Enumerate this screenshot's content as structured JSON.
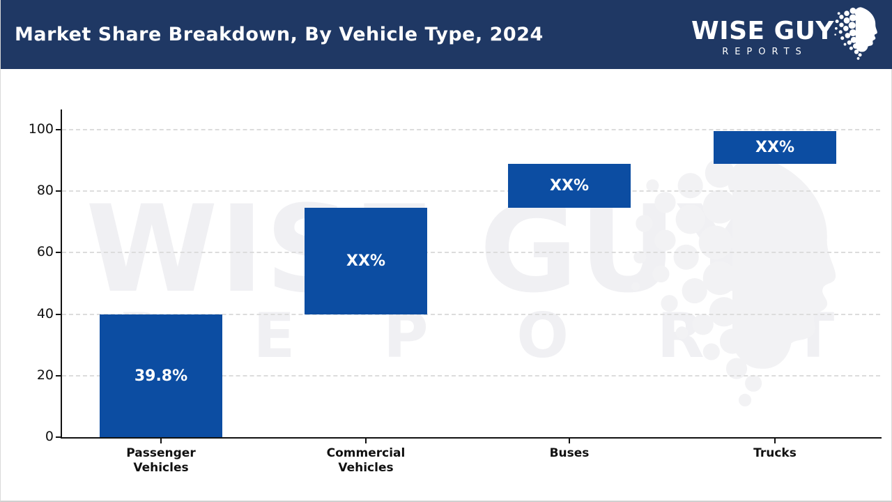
{
  "header": {
    "title": "Market Share Breakdown, By Vehicle Type, 2024",
    "brand": {
      "line1": "WISE GUY",
      "line2": "REPORTS"
    }
  },
  "watermark": {
    "line1": "WISE GUY",
    "line2": "R E P O R T S"
  },
  "chart_data": {
    "type": "bar",
    "subtype": "waterfall",
    "title": "Market Share Breakdown, By Vehicle Type, 2024",
    "categories": [
      "Passenger Vehicles",
      "Commercial Vehicles",
      "Buses",
      "Trucks"
    ],
    "tick_labels": [
      "Passenger Vehicles",
      "Commercial\nVehicles",
      "Buses",
      "Trucks"
    ],
    "segments": [
      {
        "category": "Passenger Vehicles",
        "start": 0,
        "end": 39.8,
        "label": "39.8%"
      },
      {
        "category": "Commercial Vehicles",
        "start": 39.8,
        "end": 74.6,
        "label": "XX%"
      },
      {
        "category": "Buses",
        "start": 74.6,
        "end": 88.9,
        "label": "XX%"
      },
      {
        "category": "Trucks",
        "start": 89.0,
        "end": 99.5,
        "label": "XX%"
      }
    ],
    "y_ticks": [
      0,
      20,
      40,
      60,
      80,
      100
    ],
    "ylim": [
      0,
      106
    ],
    "xlabel": "",
    "ylabel": "",
    "grid": "dashed-horizontal",
    "legend": "none",
    "bar_color": "#0C4DA2",
    "label_color": "#ffffff"
  },
  "colors": {
    "header_bg": "#1F3864",
    "bar": "#0C4DA2",
    "grid": "#dcdcdc",
    "axis": "#111111",
    "watermark": "#f0f0f3"
  }
}
